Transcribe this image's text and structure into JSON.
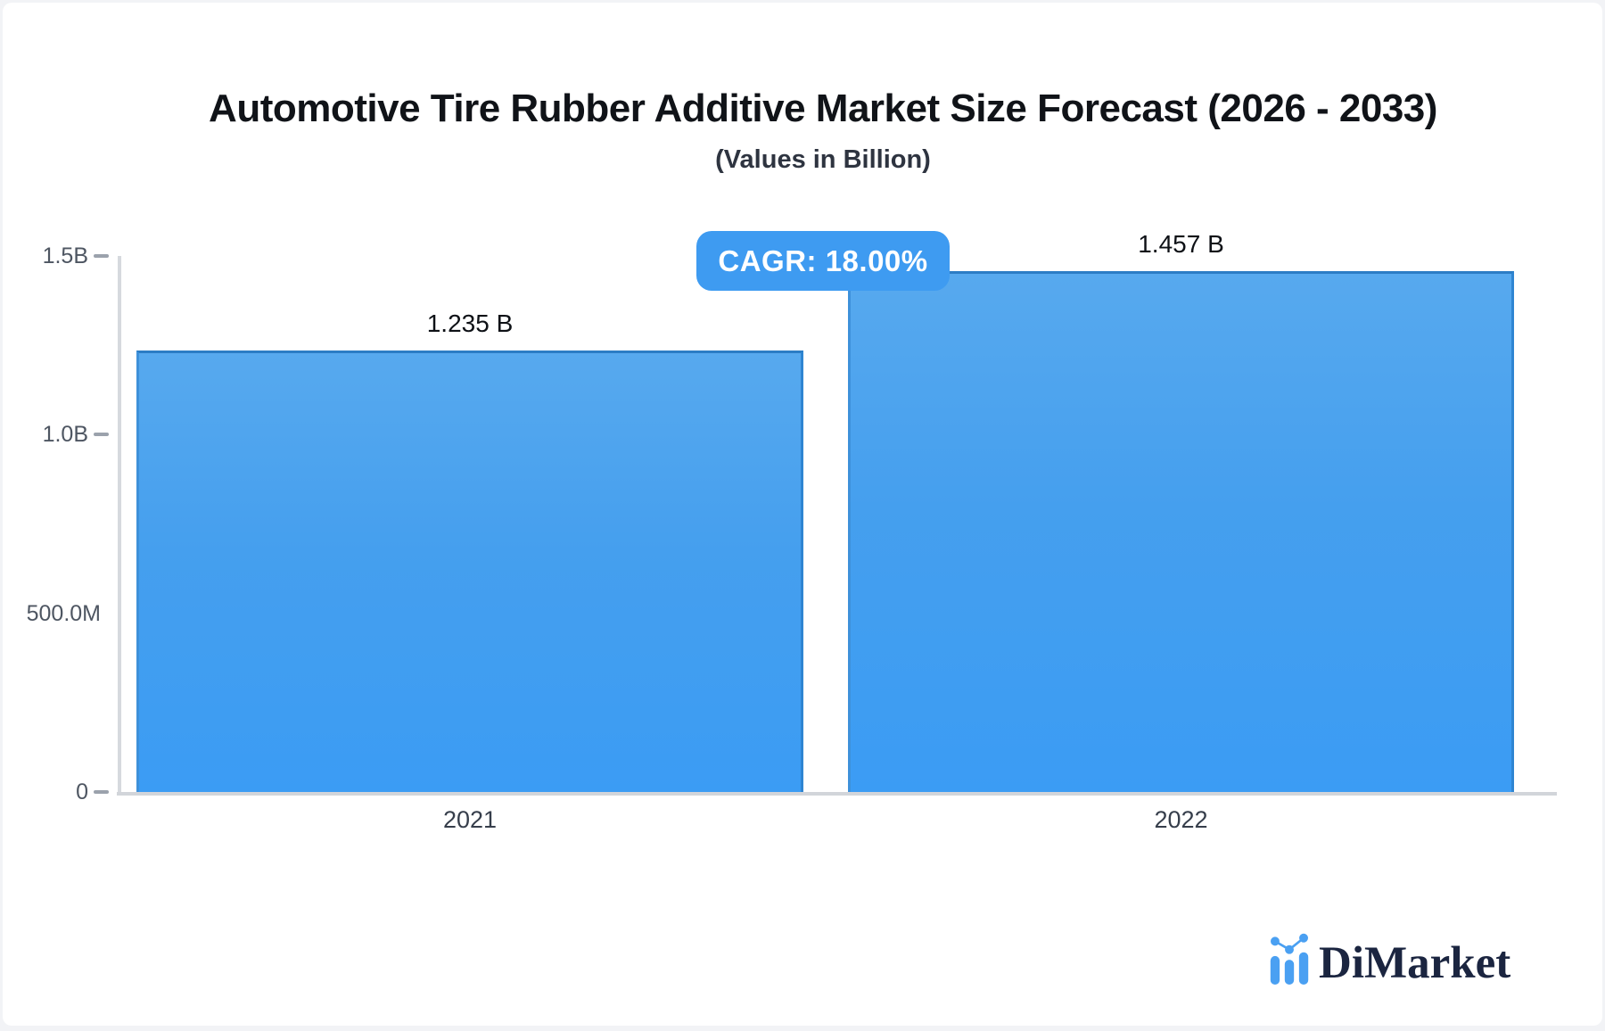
{
  "header": {
    "title": "Automotive Tire Rubber Additive Market Size Forecast (2026 - 2033)",
    "subtitle": "(Values in Billion)"
  },
  "cagr_badge": {
    "label": "CAGR: 18.00%",
    "color": "#3e9bf1"
  },
  "chart_data": {
    "type": "bar",
    "title": "Automotive Tire Rubber Additive Market Size Forecast (2026 - 2033)",
    "subtitle": "(Values in Billion)",
    "categories": [
      "2021",
      "2022"
    ],
    "values": [
      1.235,
      1.457
    ],
    "value_labels": [
      "1.235 B",
      "1.457 B"
    ],
    "cagr": "18.00%",
    "ylim": [
      0,
      1.5
    ],
    "yticks": [
      {
        "label": "1.5B",
        "value": 1.5,
        "tick_mark": true
      },
      {
        "label": "1.0B",
        "value": 1.0,
        "tick_mark": true
      },
      {
        "label": "500.0M",
        "value": 0.5,
        "tick_mark": false
      },
      {
        "label": "0",
        "value": 0,
        "tick_mark": true
      }
    ],
    "grid": false,
    "legend": false,
    "bar_color_top": "#57a9ee",
    "bar_color_bottom": "#3b9cf4",
    "bar_edge_color": "#2c7dc5",
    "axis_color": "#d2d5da"
  },
  "branding": {
    "logo_text": "DiMarket",
    "logo_color": "#1b2540",
    "logo_accent": "#4aa0f2"
  }
}
